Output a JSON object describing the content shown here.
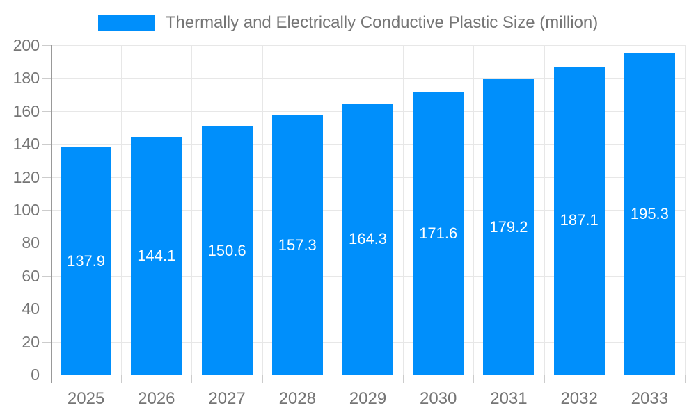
{
  "legend": {
    "label": "Thermally and Electrically Conductive Plastic Size (million)",
    "swatch_color": "#008FFB"
  },
  "chart_data": {
    "type": "bar",
    "title": "Thermally and Electrically Conductive Plastic Size (million)",
    "categories": [
      "2025",
      "2026",
      "2027",
      "2028",
      "2029",
      "2030",
      "2031",
      "2032",
      "2033"
    ],
    "values": [
      137.9,
      144.1,
      150.6,
      157.3,
      164.3,
      171.6,
      179.2,
      187.1,
      195.3
    ],
    "xlabel": "",
    "ylabel": "",
    "ylim": [
      0,
      200
    ],
    "yticks": [
      0,
      20,
      40,
      60,
      80,
      100,
      120,
      140,
      160,
      180,
      200
    ],
    "grid": true,
    "legend_position": "top",
    "value_labels_position": "inside-center"
  },
  "colors": {
    "bar": "#008FFB",
    "grid": "#e7e7e7",
    "axis": "#999999",
    "tick": "#cccccc",
    "axis_text": "#757575",
    "value_label_text": "#ffffff",
    "background": "#ffffff"
  }
}
